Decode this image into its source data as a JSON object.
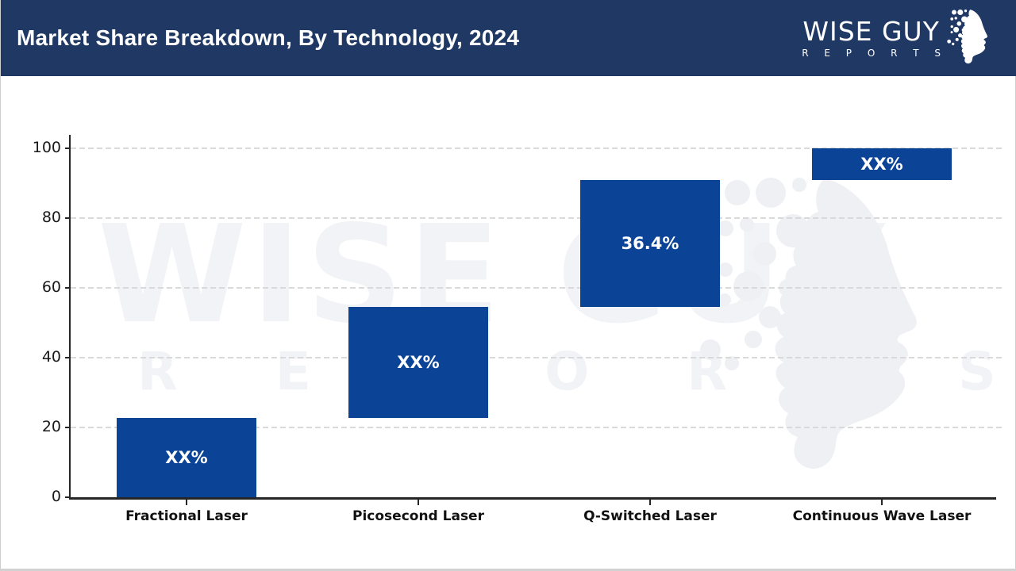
{
  "header": {
    "title": "Market Share Breakdown, By Technology, 2024",
    "logo": {
      "line1": "WISE GUY",
      "line2": "REPORTS"
    }
  },
  "watermark": {
    "line1": "WISE GUY",
    "line2": "R E P O R T S"
  },
  "colors": {
    "header_bg": "#1f3864",
    "bar": "#0b4397",
    "bar_label": "#ffffff",
    "grid": "#d9d9d9",
    "axis": "#262626",
    "watermark": "#f2f3f6"
  },
  "chart_data": {
    "type": "bar",
    "subtype": "waterfall",
    "title": "Market Share Breakdown, By Technology, 2024",
    "xlabel": "",
    "ylabel": "",
    "categories": [
      "Fractional Laser",
      "Picosecond Laser",
      "Q-Switched Laser",
      "Continuous Wave Laser"
    ],
    "segments": [
      {
        "category": "Fractional Laser",
        "start": 0,
        "end": 22.7,
        "label": "XX%"
      },
      {
        "category": "Picosecond Laser",
        "start": 22.7,
        "end": 54.5,
        "label": "XX%"
      },
      {
        "category": "Q-Switched Laser",
        "start": 54.5,
        "end": 90.9,
        "label": "36.4%"
      },
      {
        "category": "Continuous Wave Laser",
        "start": 90.9,
        "end": 100,
        "label": "XX%"
      }
    ],
    "yticks": [
      0,
      20,
      40,
      60,
      80,
      100
    ],
    "ylim": [
      0,
      104
    ],
    "grid": "horizontal-dashed",
    "legend": "none",
    "bar_color": "#0b4397",
    "label_color": "#ffffff"
  }
}
